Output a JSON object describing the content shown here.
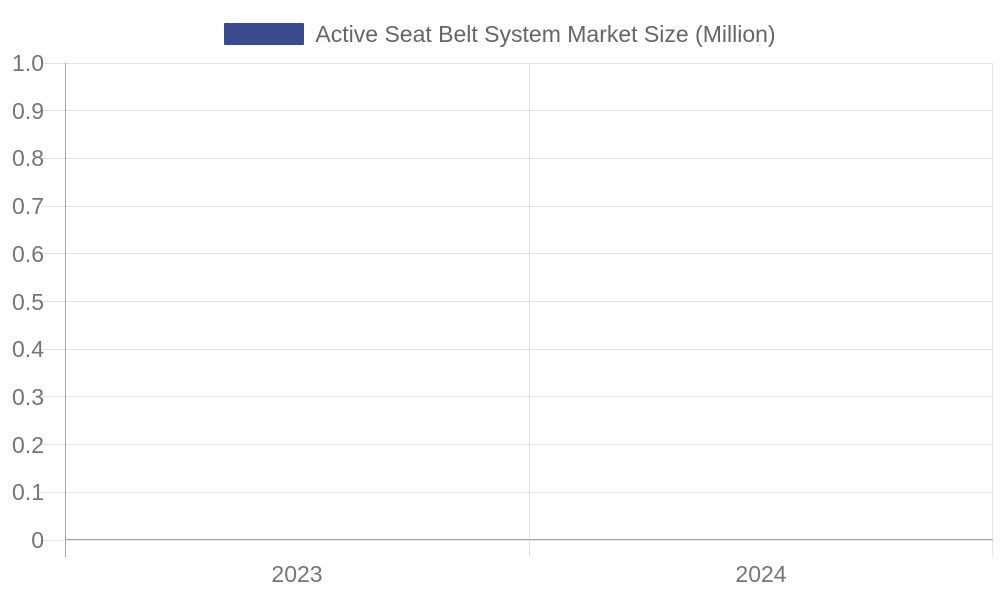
{
  "legend": {
    "items": [
      {
        "label": "Active Seat Belt System Market Size (Million)",
        "swatch_color": "#3A4A8A"
      }
    ]
  },
  "chart_data": {
    "type": "bar",
    "title": "Active Seat Belt System Market Size (Million)",
    "categories": [
      "2023",
      "2024"
    ],
    "series": [
      {
        "name": "Active Seat Belt System Market Size (Million)",
        "color": "#3A4A8A",
        "values": [
          null,
          null
        ]
      }
    ],
    "xlabel": "",
    "ylabel": "",
    "ylim": [
      0,
      1.0
    ],
    "ytick_step": 0.1,
    "ytick_labels": [
      "0",
      "0.1",
      "0.2",
      "0.3",
      "0.4",
      "0.5",
      "0.6",
      "0.7",
      "0.8",
      "0.9",
      "1.0"
    ],
    "grid": true,
    "legend_position": "top-center"
  },
  "colors": {
    "axis_line": "#a6a6a6",
    "grid_line": "#e3e3e3",
    "tick_text": "#757575",
    "title_text": "#666666",
    "background": "#ffffff",
    "series_color": "#3A4A8A"
  }
}
